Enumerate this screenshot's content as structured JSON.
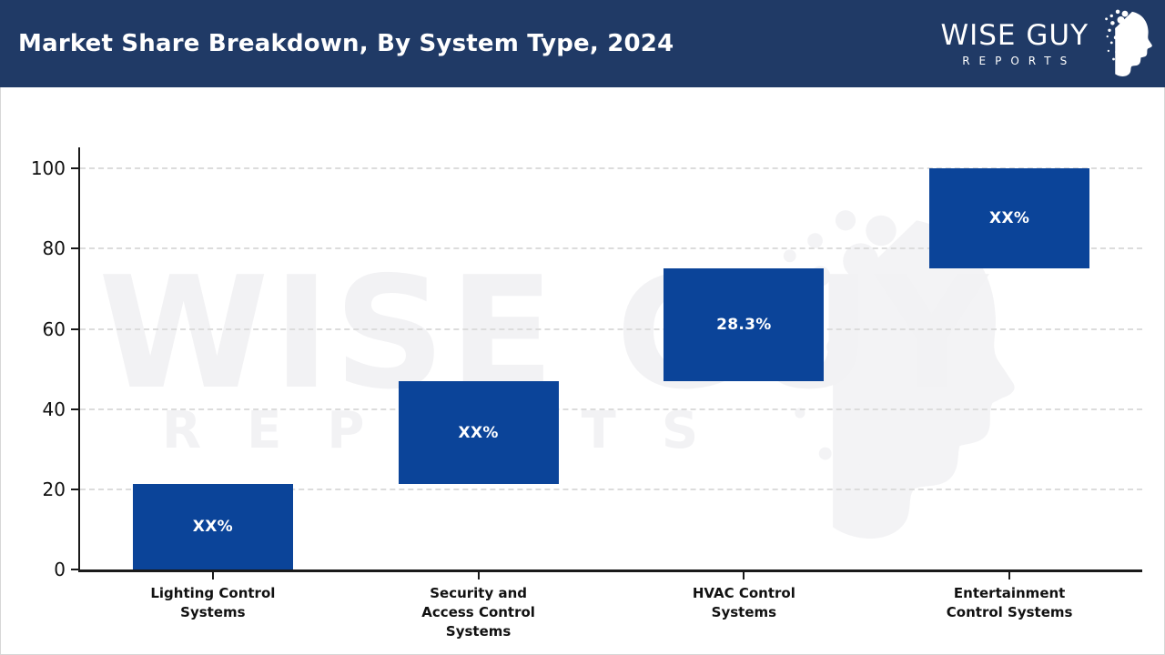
{
  "header": {
    "title": "Market Share Breakdown, By System Type, 2024",
    "background_color": "#203a66",
    "logo": {
      "line1": "WISE GUY",
      "line2": "REPORTS"
    }
  },
  "watermark": {
    "big_text": "WISE GUY",
    "reports_text": "REPORTS",
    "color": "#f2f2f4"
  },
  "chart_data": {
    "type": "bar",
    "subtype": "floating-waterfall",
    "title": "Market Share Breakdown, By System Type, 2024",
    "categories": [
      [
        "Lighting Control",
        "Systems"
      ],
      [
        "Security and",
        "Access Control",
        "Systems"
      ],
      [
        "HVAC Control",
        "Systems"
      ],
      [
        "Entertainment",
        "Control Systems"
      ]
    ],
    "segments": [
      {
        "start": 0,
        "end": 21.3,
        "label": "XX%"
      },
      {
        "start": 21.3,
        "end": 46.9,
        "label": "XX%"
      },
      {
        "start": 46.9,
        "end": 75.2,
        "label": "28.3%"
      },
      {
        "start": 75.2,
        "end": 100,
        "label": "XX%"
      }
    ],
    "y_axis": {
      "ticks": [
        0,
        20,
        40,
        60,
        80,
        100
      ],
      "min": 0,
      "max": 100,
      "grid": "dashed"
    },
    "xlabel": "",
    "ylabel": "",
    "legend": null,
    "bar_color": "#0b4499",
    "bar_label_color": "#ffffff",
    "axis_color": "#1a1a1a",
    "gridline_color": "#dcdcdc"
  }
}
